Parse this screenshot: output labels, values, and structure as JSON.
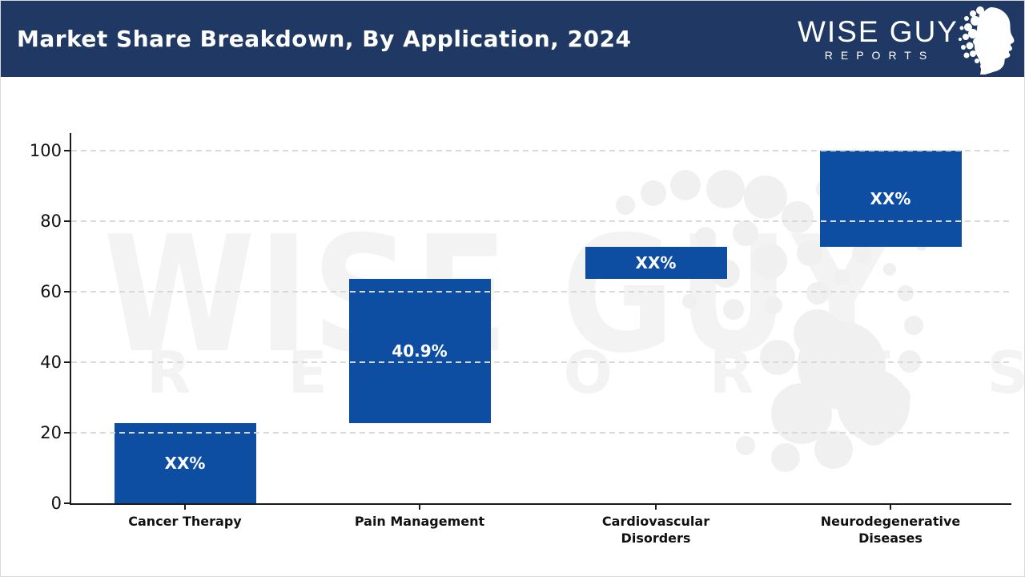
{
  "header": {
    "title": "Market Share Breakdown, By Application, 2024",
    "background": "#1f3864",
    "logo": {
      "line1": "WISE GUY",
      "line2": "REPORTS"
    }
  },
  "watermark": {
    "line1": "WISE GUY",
    "line2": "R E P O R T S"
  },
  "chart_data": {
    "type": "bar",
    "subtype": "floating-waterfall",
    "title": "Market Share Breakdown, By Application, 2024",
    "categories": [
      "Cancer Therapy",
      "Pain Management",
      "Cardiovascular Disorders",
      "Neurodegenerative Diseases"
    ],
    "bars": [
      {
        "category": "Cancer Therapy",
        "start": 0,
        "end": 22.7,
        "value": 22.7,
        "value_label": "XX%"
      },
      {
        "category": "Pain Management",
        "start": 22.7,
        "end": 63.6,
        "value": 40.9,
        "value_label": "40.9%"
      },
      {
        "category": "Cardiovascular Disorders",
        "start": 63.6,
        "end": 72.7,
        "value": 9.1,
        "value_label": "XX%"
      },
      {
        "category": "Neurodegenerative Diseases",
        "start": 72.7,
        "end": 100,
        "value": 27.3,
        "value_label": "XX%"
      }
    ],
    "xlabel": "",
    "ylabel": "",
    "ylim": [
      0,
      100
    ],
    "yticks": [
      0,
      20,
      40,
      60,
      80,
      100
    ],
    "grid": "horizontal-dashed",
    "legend": "none",
    "bar_color": "#0d4da2"
  },
  "colors": {
    "header_bg": "#1f3864",
    "bar": "#0d4da2",
    "grid": "#d9d9d9",
    "axis": "#1a1a1a",
    "watermark": "#f3f3f3",
    "title_text": "#ffffff",
    "bar_label_text": "#ffffff"
  }
}
